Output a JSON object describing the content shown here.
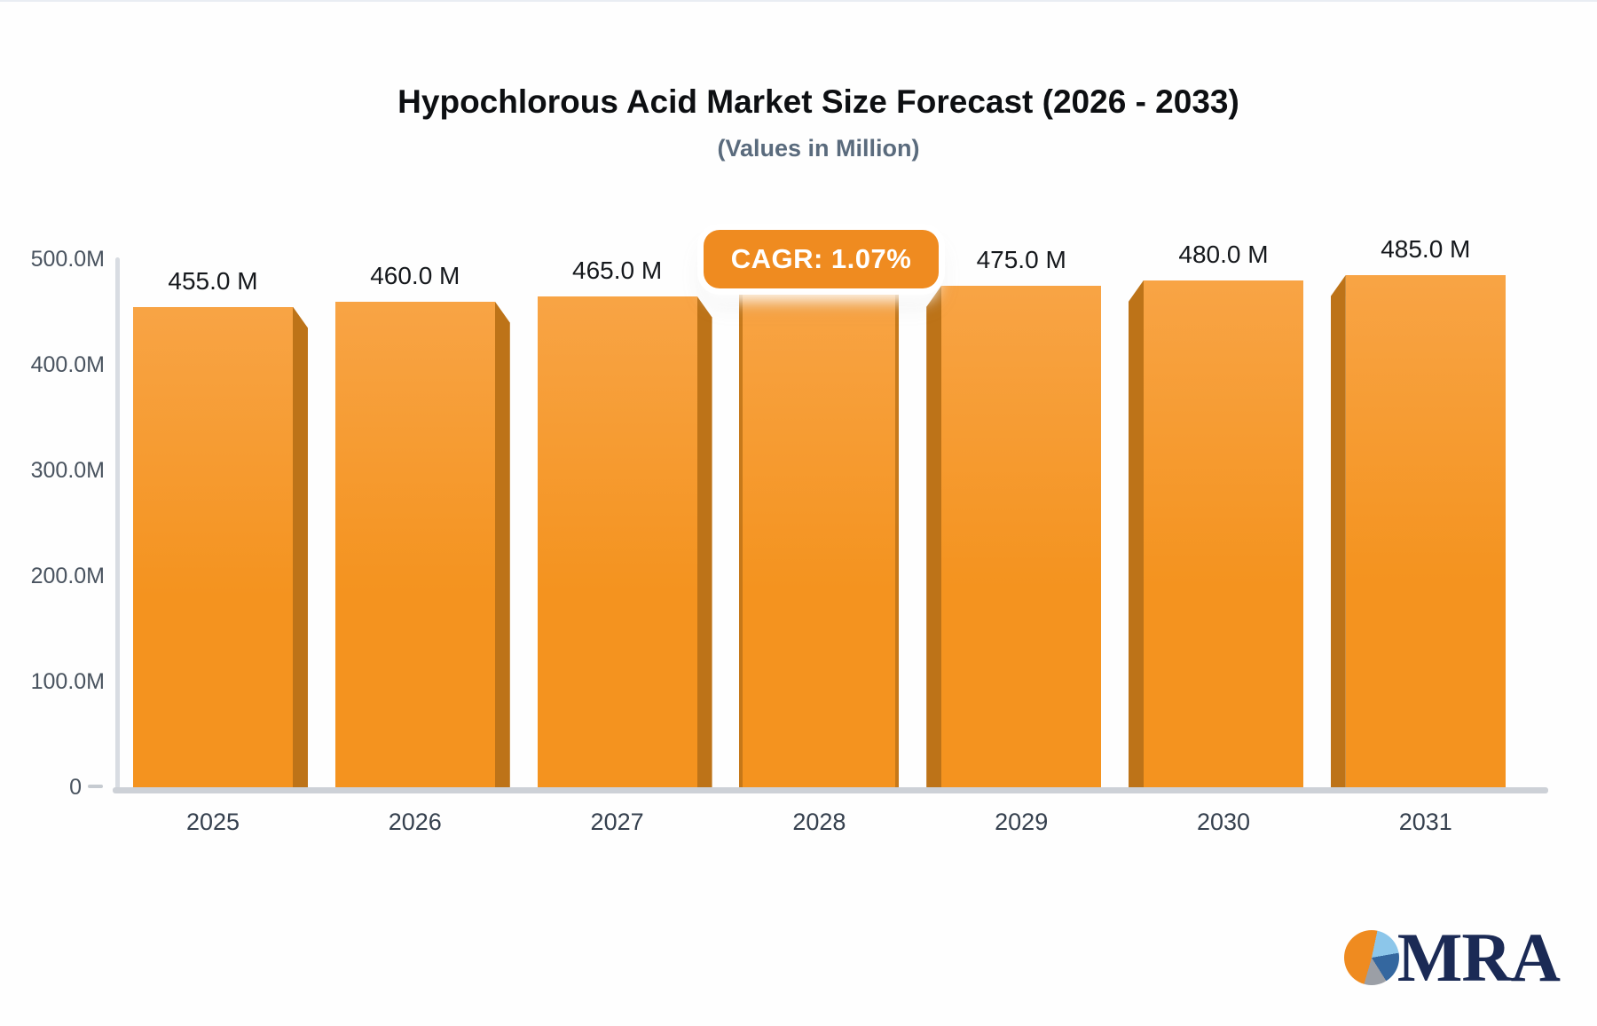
{
  "chart_data": {
    "type": "bar",
    "title": "Hypochlorous Acid Market Size Forecast (2026 - 2033)",
    "subtitle": "(Values in Million)",
    "categories": [
      "2025",
      "2026",
      "2027",
      "2028",
      "2029",
      "2030",
      "2031"
    ],
    "values": [
      455,
      460,
      465,
      470,
      475,
      480,
      485
    ],
    "bar_labels": [
      "455.0 M",
      "460.0 M",
      "465.0 M",
      "",
      "475.0 M",
      "480.0 M",
      "485.0 M"
    ],
    "y_tick_labels": [
      "500.0M",
      "400.0M",
      "300.0M",
      "200.0M",
      "100.0M",
      "0"
    ],
    "y_tick_values": [
      500,
      400,
      300,
      200,
      100,
      0
    ],
    "ylim": [
      0,
      500
    ],
    "unit": "Million",
    "grid": false,
    "legend": false,
    "annotation": "CAGR: 1.07%",
    "colors": {
      "bar_top": "#f8a445",
      "bar_bottom": "#f4931f",
      "bar_side": "#bd7318",
      "axis": "#d8dce2",
      "baseline": "#cdd1d7"
    }
  },
  "badge": {
    "text": "CAGR: 1.07%",
    "background": "#ef8b20",
    "text_color": "#ffffff"
  },
  "logo": {
    "text": "MRA",
    "text_color": "#1b2a55",
    "pie_colors": [
      "#ef8b20",
      "#8cc6ea",
      "#34679f",
      "#9b9fa6"
    ]
  }
}
